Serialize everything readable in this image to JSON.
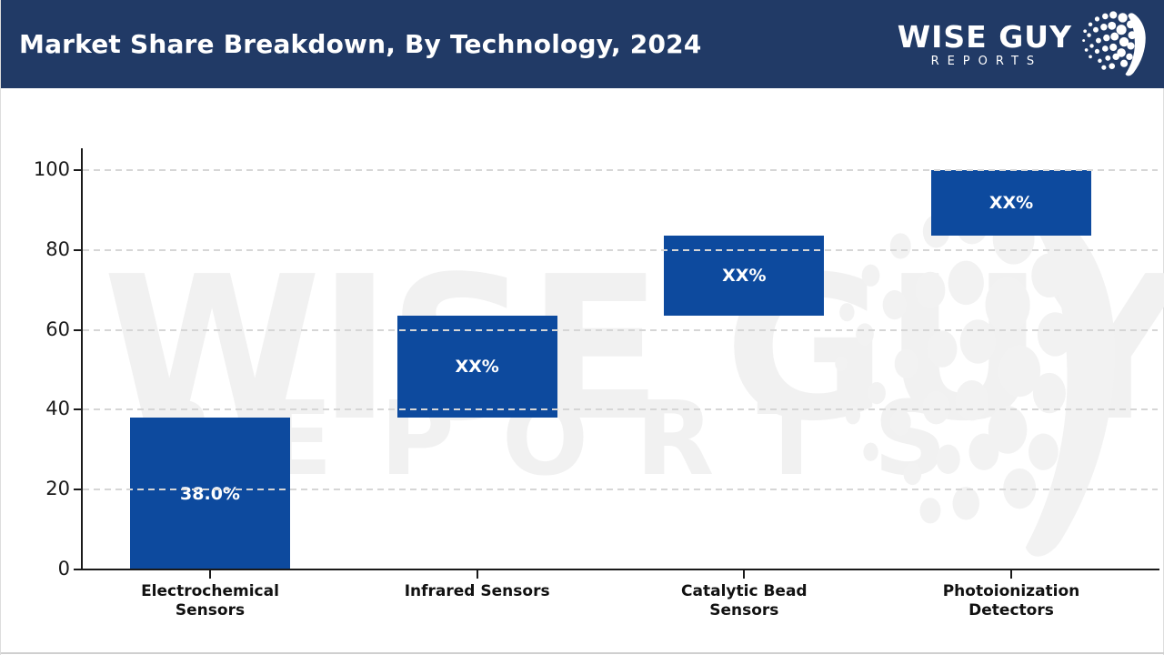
{
  "header": {
    "title": "Market Share Breakdown, By Technology, 2024",
    "logo": {
      "line1": "WISE GUY",
      "line2": "REPORTS"
    }
  },
  "watermark": {
    "line1": "WISE GUY",
    "line2": "REPORTS"
  },
  "colors": {
    "header_bg": "#213a66",
    "bar": "#0d4a9e",
    "grid": "#d6d6d6",
    "axis": "#1a1a1a",
    "watermark": "#f1f1f1",
    "bar_label": "#ffffff",
    "title_text": "#ffffff"
  },
  "chart_data": {
    "type": "bar",
    "variant": "waterfall",
    "title": "Market Share Breakdown, By Technology, 2024",
    "categories": [
      "Electrochemical Sensors",
      "Infrared Sensors",
      "Catalytic Bead Sensors",
      "Photoionization Detectors"
    ],
    "category_lines": [
      [
        "Electrochemical",
        "Sensors"
      ],
      [
        "Infrared Sensors"
      ],
      [
        "Catalytic Bead",
        "Sensors"
      ],
      [
        "Photoionization",
        "Detectors"
      ]
    ],
    "bars": [
      {
        "category": "Electrochemical Sensors",
        "start": 0,
        "end": 38,
        "label": "38.0%"
      },
      {
        "category": "Infrared Sensors",
        "start": 38,
        "end": 63.5,
        "label": "XX%"
      },
      {
        "category": "Catalytic Bead Sensors",
        "start": 63.5,
        "end": 83.5,
        "label": "XX%"
      },
      {
        "category": "Photoionization Detectors",
        "start": 83.5,
        "end": 100,
        "label": "XX%"
      }
    ],
    "xlabel": "",
    "ylabel": "",
    "ylim": [
      0,
      100
    ],
    "yticks": [
      0,
      20,
      40,
      60,
      80,
      100
    ],
    "grid": "horizontal-dashed",
    "legend": "none"
  }
}
